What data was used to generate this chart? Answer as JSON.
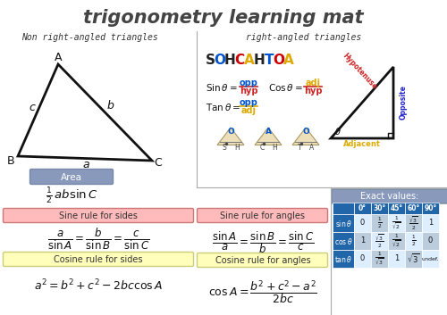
{
  "title": "trigonometry learning mat",
  "bg_color": "#ffffff",
  "title_color": "#444444",
  "section_left": "Non right-angled triangles",
  "section_right": "right-angled triangles",
  "sohcahtoa_letters": [
    "S",
    "O",
    "H",
    "C",
    "A",
    "H",
    "T",
    "O",
    "A"
  ],
  "soh_colors": [
    "#222222",
    "#0055cc",
    "#222222",
    "#cc0000",
    "#ddaa00",
    "#222222",
    "#0055cc",
    "#cc0000",
    "#ddaa00"
  ],
  "area_box_color": "#8899bb",
  "sine_sides_box": "#ffbbbb",
  "cosine_sides_box": "#ffffbb",
  "sine_angles_box": "#ffbbbb",
  "cosine_angles_box": "#ffffbb",
  "exact_header_color": "#8899bb",
  "exact_blue": "#2266aa",
  "exact_light": "#bbccdd",
  "exact_lighter": "#ddeeff",
  "hyp_color": "#cc2222",
  "opp_color": "#2222cc",
  "adj_color": "#ddaa00",
  "div_color": "#aaaaaa",
  "tri_face": "#eedfbb",
  "tri_edge": "#aa9966"
}
